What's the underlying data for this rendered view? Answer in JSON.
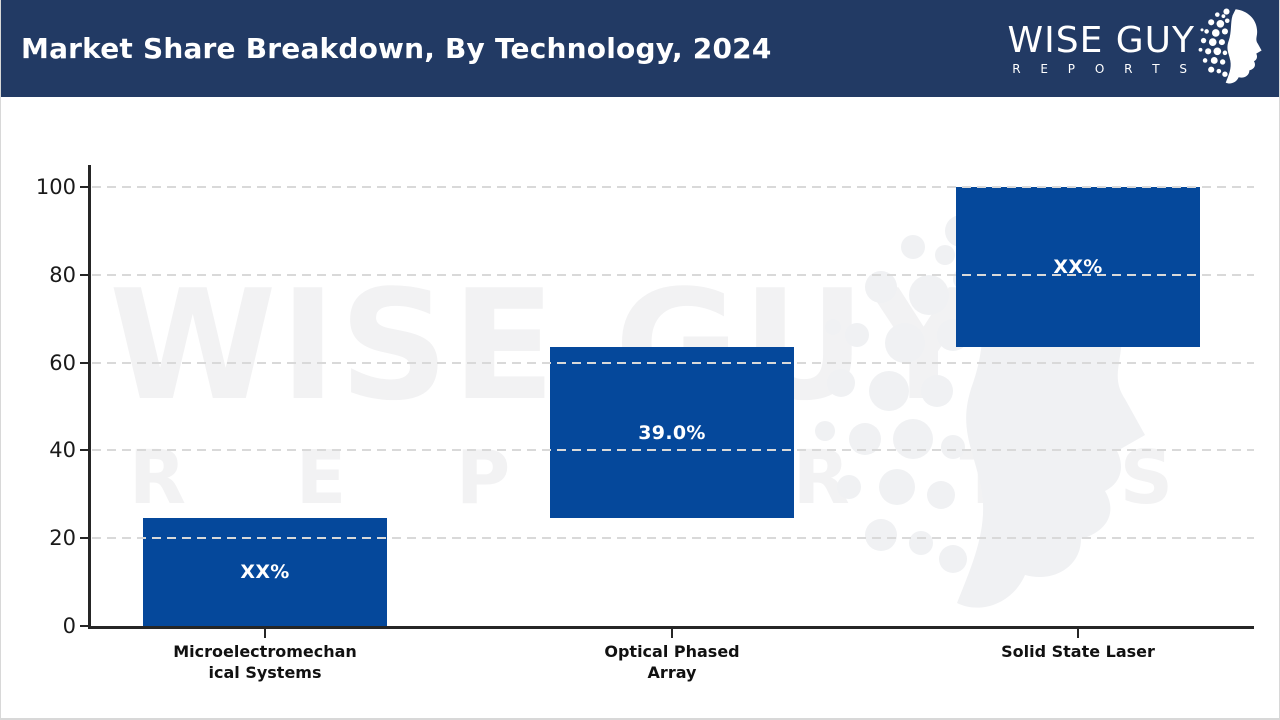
{
  "header": {
    "title": "Market Share Breakdown, By Technology, 2024",
    "bg_color": "#223A64",
    "logo": {
      "name": "WISE GUY",
      "tagline": "R E P O R T S"
    }
  },
  "watermark": {
    "name": "WISE GUY",
    "tagline": "R E P O R T S"
  },
  "chart_data": {
    "type": "bar",
    "subtype": "stacked-percentage-waterfall",
    "title": "Market Share Breakdown, By Technology, 2024",
    "categories": [
      "Microelectromechanical Systems",
      "Optical Phased Array",
      "Solid State Laser"
    ],
    "x_tick_labels": [
      [
        "Microelectromechan",
        "ical Systems"
      ],
      [
        "Optical Phased",
        "Array"
      ],
      [
        "Solid State Laser"
      ]
    ],
    "segments": [
      {
        "category": "Microelectromechanical Systems",
        "start": 0,
        "end": 24.5,
        "label": "XX%"
      },
      {
        "category": "Optical Phased Array",
        "start": 24.5,
        "end": 63.5,
        "label": "39.0%"
      },
      {
        "category": "Solid State Laser",
        "start": 63.5,
        "end": 100.0,
        "label": "XX%"
      }
    ],
    "ylim": [
      0,
      100
    ],
    "yticks": [
      0,
      20,
      40,
      60,
      80,
      100
    ],
    "bar_color": "#05489B",
    "grid": {
      "axis": "y",
      "style": "dashed",
      "color": "#D9D9D9",
      "on_top": true
    },
    "legend": "none"
  }
}
